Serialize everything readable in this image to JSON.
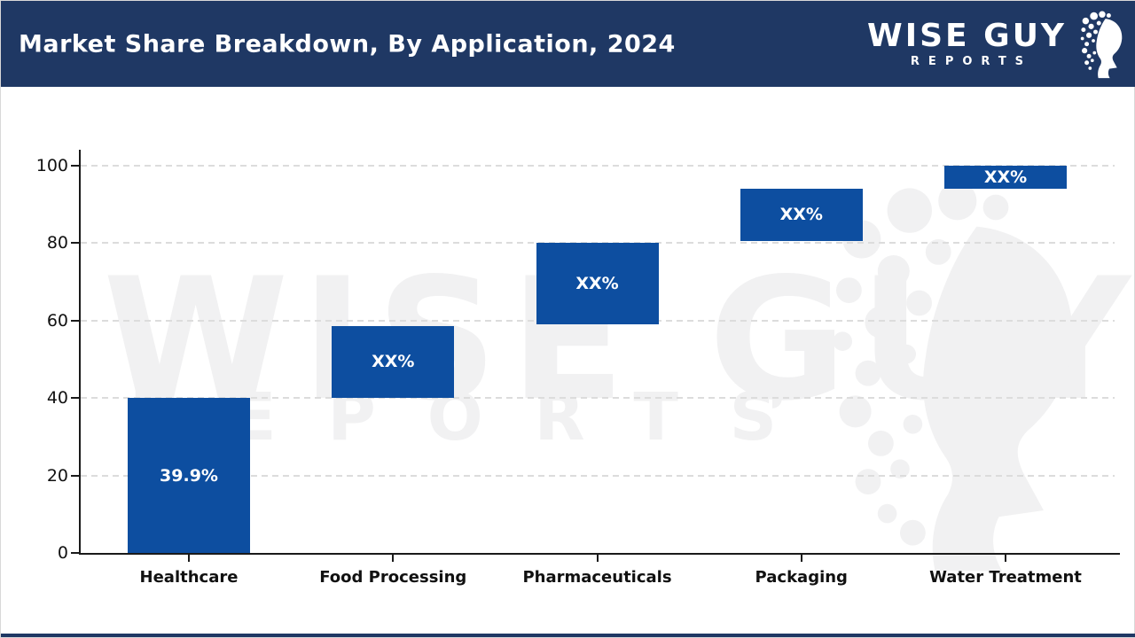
{
  "header": {
    "title": "Market Share Breakdown, By Application, 2024",
    "background_color": "#1f3864",
    "text_color": "#ffffff"
  },
  "logo": {
    "line1": "WISE GUY",
    "line2": "REPORTS"
  },
  "watermark": {
    "line1": "WISE GUY",
    "line2": "REPORTS"
  },
  "chart_data": {
    "type": "bar",
    "subtype": "waterfall",
    "title": "Market Share Breakdown, By Application, 2024",
    "categories": [
      "Healthcare",
      "Food Processing",
      "Pharmaceuticals",
      "Packaging",
      "Water Treatment"
    ],
    "segments": [
      {
        "category": "Healthcare",
        "start": 0,
        "end": 39.9,
        "label": "39.9%"
      },
      {
        "category": "Food Processing",
        "start": 40,
        "end": 58.6,
        "label": "XX%"
      },
      {
        "category": "Pharmaceuticals",
        "start": 59,
        "end": 80,
        "label": "XX%"
      },
      {
        "category": "Packaging",
        "start": 80.5,
        "end": 94,
        "label": "XX%"
      },
      {
        "category": "Water Treatment",
        "start": 94,
        "end": 100,
        "label": "XX%"
      }
    ],
    "xlabel": "",
    "ylabel": "",
    "yticks": [
      0,
      20,
      40,
      60,
      80,
      100
    ],
    "ylim": [
      0,
      104.5
    ],
    "grid": "horizontal-dashed",
    "legend": "none",
    "bar_color": "#0d4ea0",
    "bar_label_color": "#ffffff",
    "grid_color": "#dcdcdc",
    "axis_color": "#1a1a1a"
  }
}
